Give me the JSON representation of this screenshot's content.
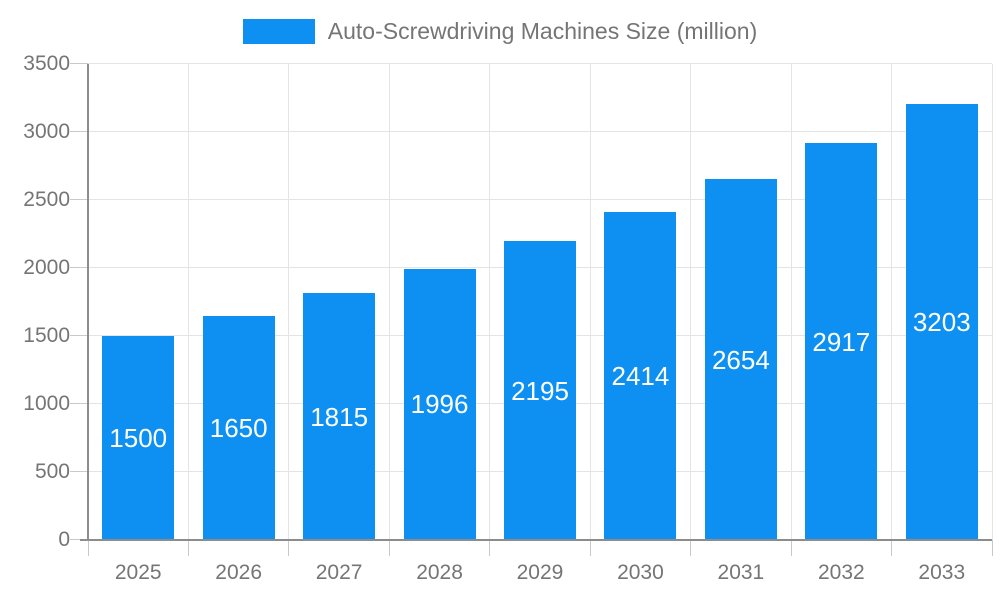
{
  "chart_data": {
    "type": "bar",
    "series_name": "Auto-Screwdriving Machines Size (million)",
    "categories": [
      "2025",
      "2026",
      "2027",
      "2028",
      "2029",
      "2030",
      "2031",
      "2032",
      "2033"
    ],
    "values": [
      1500,
      1650,
      1815,
      1996,
      2195,
      2414,
      2654,
      2917,
      3203
    ],
    "value_labels": [
      "1500",
      "1650",
      "1815",
      "1996",
      "2195",
      "2414",
      "2654",
      "2917",
      "3203"
    ],
    "ytick_labels": [
      "0",
      "500",
      "1000",
      "1500",
      "2000",
      "2500",
      "3000",
      "3500"
    ],
    "ylim": [
      0,
      3500
    ],
    "ytick_step": 500,
    "grid": true,
    "legend_position": "top",
    "title": "",
    "xlabel": "",
    "ylabel": "",
    "colors": {
      "bar": "#0E90F2",
      "value_label": "#FFFFFF",
      "axis_label": "#757575",
      "grid": "#E4E4E4",
      "axis_line": "#8C8C8C",
      "tick": "#C9C9C9"
    }
  }
}
